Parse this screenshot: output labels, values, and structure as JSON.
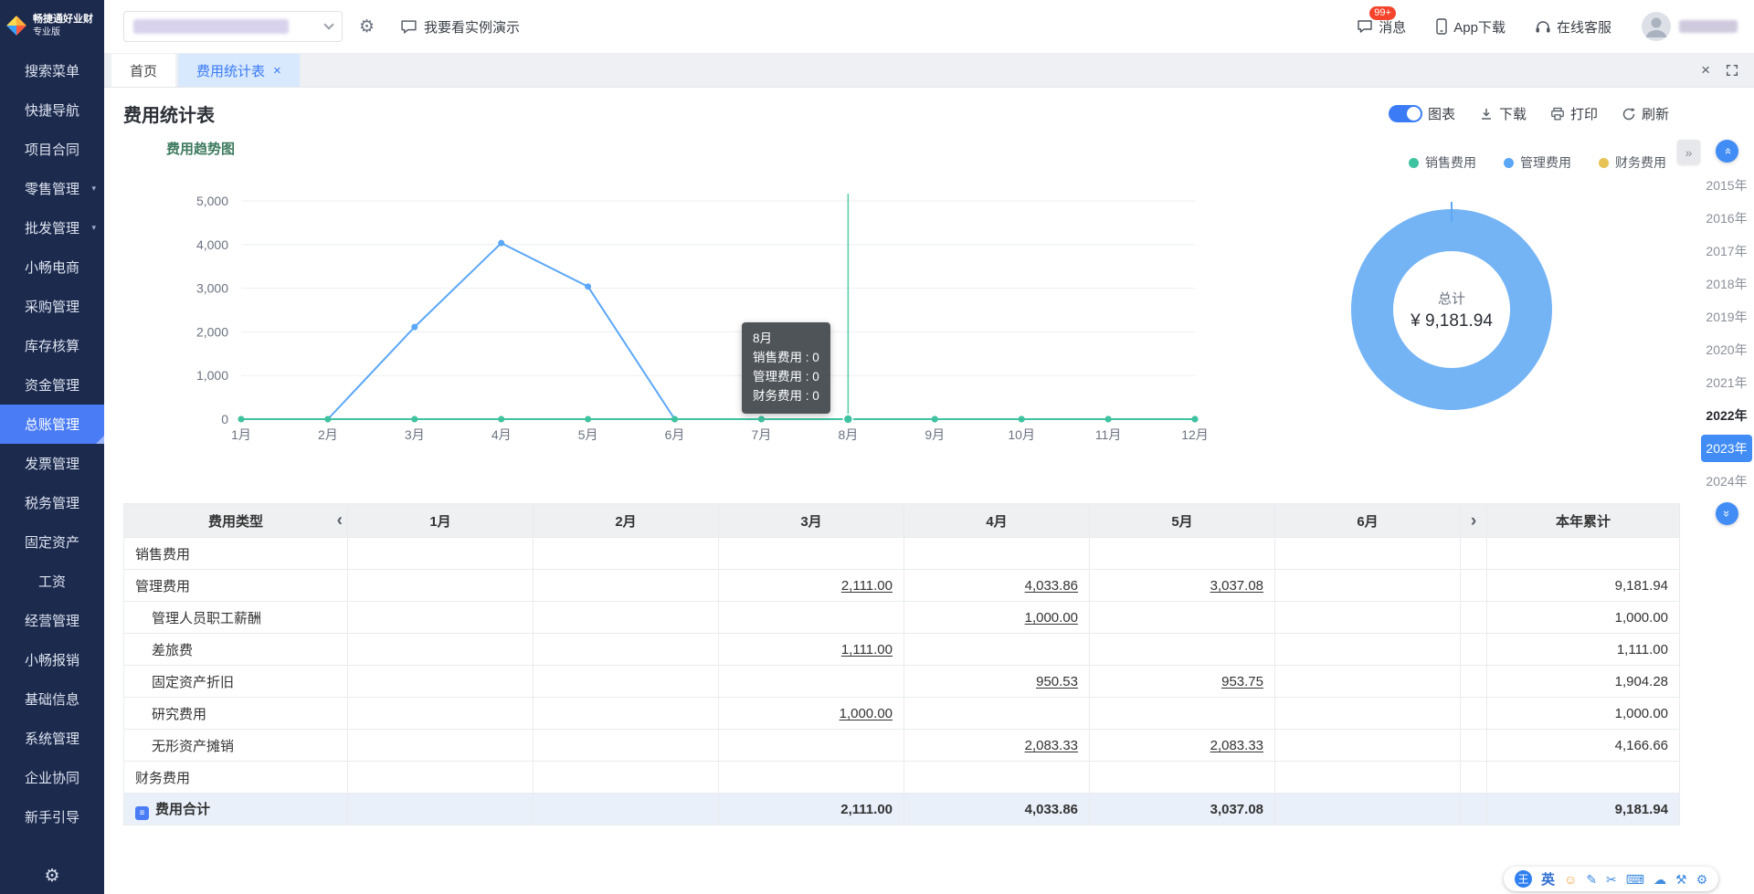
{
  "app": {
    "logo_title": "畅捷通好业财",
    "logo_subtitle": "专业版"
  },
  "sidebar": {
    "items": [
      {
        "label": "搜索菜单"
      },
      {
        "label": "快捷导航"
      },
      {
        "label": "项目合同"
      },
      {
        "label": "零售管理",
        "expandable": true
      },
      {
        "label": "批发管理",
        "expandable": true
      },
      {
        "label": "小畅电商"
      },
      {
        "label": "采购管理"
      },
      {
        "label": "库存核算"
      },
      {
        "label": "资金管理"
      },
      {
        "label": "总账管理",
        "active": true
      },
      {
        "label": "发票管理"
      },
      {
        "label": "税务管理"
      },
      {
        "label": "固定资产"
      },
      {
        "label": "工资"
      },
      {
        "label": "经营管理"
      },
      {
        "label": "小畅报销"
      },
      {
        "label": "基础信息"
      },
      {
        "label": "系统管理"
      },
      {
        "label": "企业协同"
      },
      {
        "label": "新手引导"
      }
    ]
  },
  "topbar": {
    "demo_label": "我要看实例演示",
    "messages_label": "消息",
    "messages_badge": "99+",
    "app_download_label": "App下载",
    "support_label": "在线客服"
  },
  "tabs": {
    "home_label": "首页",
    "active_label": "费用统计表"
  },
  "page": {
    "title": "费用统计表",
    "chart_toggle_label": "图表",
    "download_label": "下载",
    "print_label": "打印",
    "refresh_label": "刷新"
  },
  "chart_data": [
    {
      "type": "line",
      "title": "费用趋势图",
      "x": [
        "1月",
        "2月",
        "3月",
        "4月",
        "5月",
        "6月",
        "7月",
        "8月",
        "9月",
        "10月",
        "11月",
        "12月"
      ],
      "series": [
        {
          "name": "销售费用",
          "color": "#3ec3a0",
          "values": [
            0,
            0,
            0,
            0,
            0,
            0,
            0,
            0,
            0,
            0,
            0,
            0
          ]
        },
        {
          "name": "管理费用",
          "color": "#5ba7f7",
          "values": [
            null,
            0,
            2111.0,
            4033.86,
            3037.08,
            0,
            0,
            0,
            0,
            0,
            0,
            0
          ]
        },
        {
          "name": "财务费用",
          "color": "#e7c254",
          "values": [
            0,
            0,
            0,
            0,
            0,
            0,
            0,
            0,
            0,
            0,
            0,
            0
          ]
        }
      ],
      "ylim": [
        0,
        5000
      ],
      "yticks": [
        0,
        1000,
        2000,
        3000,
        4000,
        5000
      ],
      "grid": true,
      "legend_position": "top-right",
      "tooltip": {
        "x": "8月",
        "lines": [
          {
            "name": "销售费用",
            "value": "0"
          },
          {
            "name": "管理费用",
            "value": "0"
          },
          {
            "name": "财务费用",
            "value": "0"
          }
        ]
      }
    },
    {
      "type": "pie",
      "center_label": "总计",
      "center_value": "¥ 9,181.94",
      "slices": [
        {
          "name": "销售费用",
          "value": 0,
          "color": "#3ec3a0"
        },
        {
          "name": "管理费用",
          "value": 9181.94,
          "color": "#74b4f5"
        },
        {
          "name": "财务费用",
          "value": 0,
          "color": "#e7c254"
        }
      ]
    }
  ],
  "years": {
    "list": [
      "2015年",
      "2016年",
      "2017年",
      "2018年",
      "2019年",
      "2020年",
      "2021年",
      "2022年",
      "2023年",
      "2024年"
    ],
    "selected": "2023年",
    "emphasized": "2022年"
  },
  "table": {
    "col_type": "费用类型",
    "col_total": "本年累计",
    "months": [
      "1月",
      "2月",
      "3月",
      "4月",
      "5月",
      "6月"
    ],
    "rows": [
      {
        "name": "销售费用",
        "indent": 0,
        "cells": [
          "",
          "",
          "",
          "",
          "",
          ""
        ],
        "total": ""
      },
      {
        "name": "管理费用",
        "indent": 0,
        "cells": [
          "",
          "",
          "2,111.00",
          "4,033.86",
          "3,037.08",
          ""
        ],
        "total": "9,181.94"
      },
      {
        "name": "管理人员职工薪酬",
        "indent": 1,
        "cells": [
          "",
          "",
          "",
          "1,000.00",
          "",
          ""
        ],
        "total": "1,000.00"
      },
      {
        "name": "差旅费",
        "indent": 1,
        "cells": [
          "",
          "",
          "1,111.00",
          "",
          "",
          ""
        ],
        "total": "1,111.00"
      },
      {
        "name": "固定资产折旧",
        "indent": 1,
        "cells": [
          "",
          "",
          "",
          "950.53",
          "953.75",
          ""
        ],
        "total": "1,904.28"
      },
      {
        "name": "研究费用",
        "indent": 1,
        "cells": [
          "",
          "",
          "1,000.00",
          "",
          "",
          ""
        ],
        "total": "1,000.00"
      },
      {
        "name": "无形资产摊销",
        "indent": 1,
        "cells": [
          "",
          "",
          "",
          "2,083.33",
          "2,083.33",
          ""
        ],
        "total": "4,166.66"
      },
      {
        "name": "财务费用",
        "indent": 0,
        "cells": [
          "",
          "",
          "",
          "",
          "",
          ""
        ],
        "total": ""
      }
    ],
    "footer": {
      "name": "费用合计",
      "cells": [
        "",
        "",
        "2,111.00",
        "4,033.86",
        "3,037.08",
        ""
      ],
      "total": "9,181.94"
    }
  },
  "ime": {
    "logo": "王",
    "lang": "英",
    "icons": [
      {
        "name": "emoji-icon",
        "glyph": "☺",
        "warm": true
      },
      {
        "name": "pen-icon",
        "glyph": "✎"
      },
      {
        "name": "scissors-icon",
        "glyph": "✂"
      },
      {
        "name": "keyboard-icon",
        "glyph": "⌨"
      },
      {
        "name": "cloud-icon",
        "glyph": "☁"
      },
      {
        "name": "toolbox-icon",
        "glyph": "⚒"
      },
      {
        "name": "gear-icon",
        "glyph": "⚙"
      }
    ]
  }
}
